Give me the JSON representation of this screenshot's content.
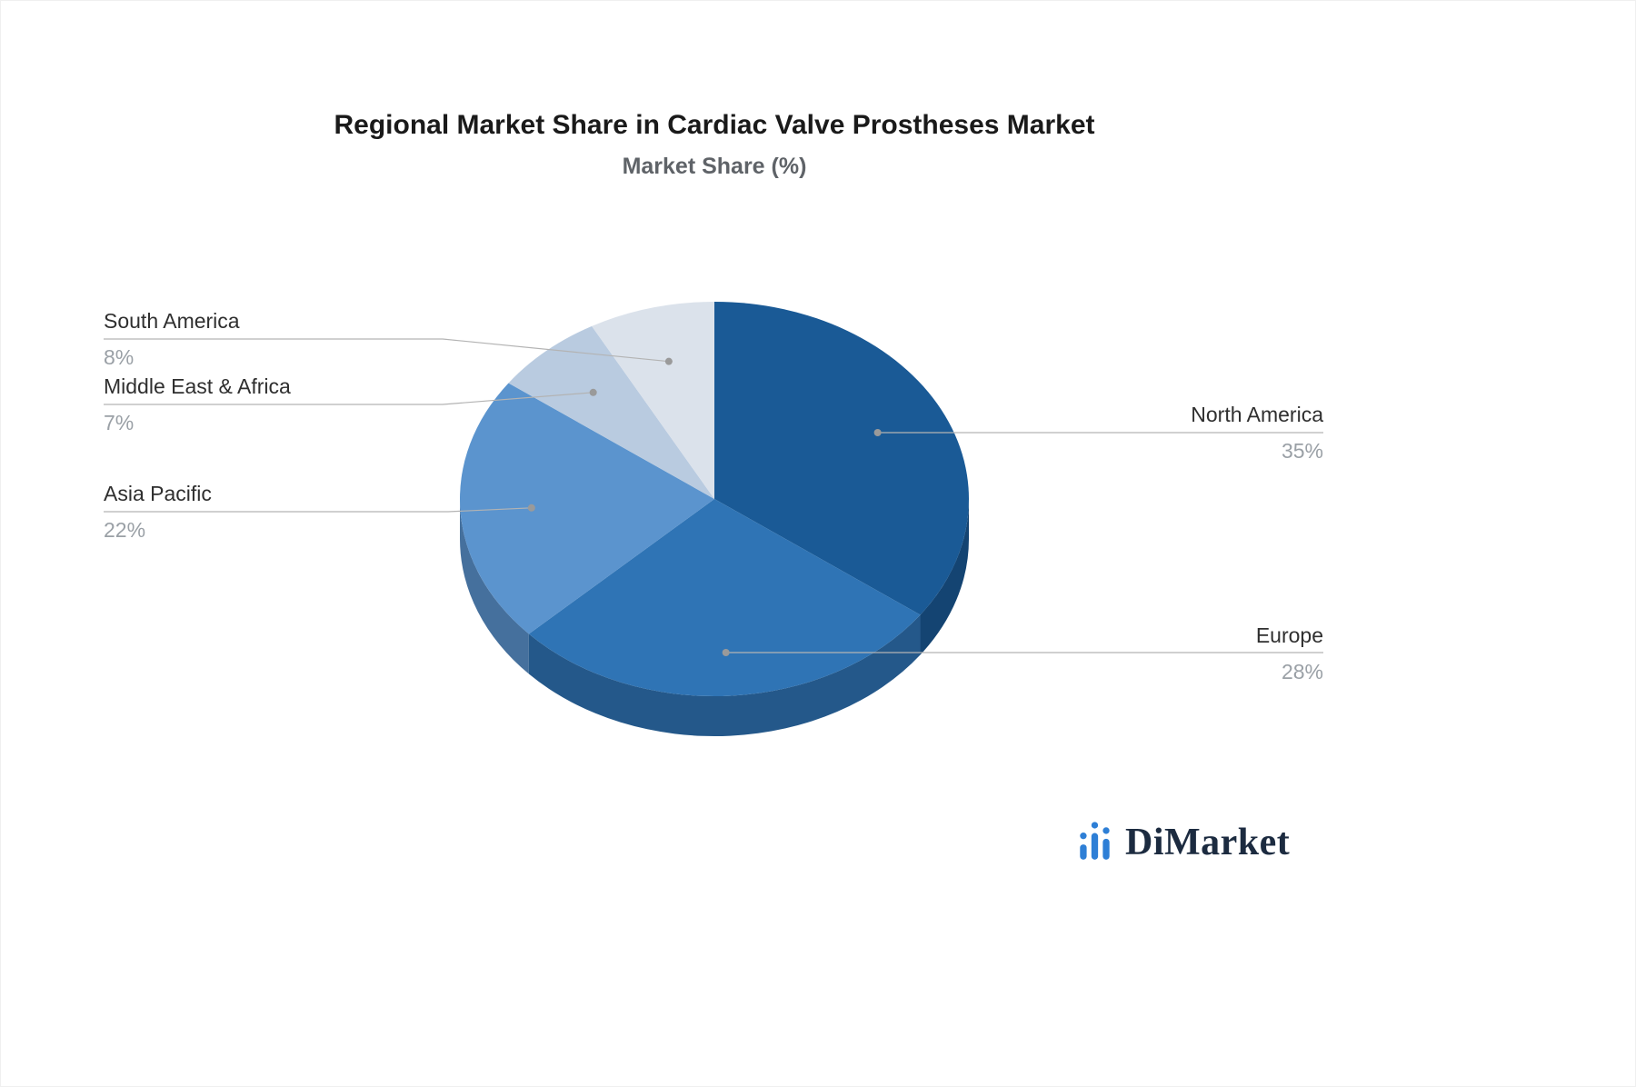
{
  "header": {
    "title": "Regional Market Share in Cardiac Valve Prostheses Market",
    "subtitle": "Market Share (%)"
  },
  "chart_data": {
    "type": "pie",
    "title": "Regional Market Share in Cardiac Valve Prostheses Market",
    "subtitle": "Market Share (%)",
    "unit": "%",
    "style": "3d-pie",
    "start_angle_deg": -90,
    "direction": "clockwise",
    "legend": "none",
    "label_style": "callout-lines-with-dots",
    "categories": [
      "North America",
      "Europe",
      "Asia Pacific",
      "Middle East & Africa",
      "South America"
    ],
    "values": [
      35,
      28,
      22,
      7,
      8
    ],
    "slices": [
      {
        "label": "North America",
        "value": 35,
        "display": "35%",
        "color": "#1a5a96"
      },
      {
        "label": "Europe",
        "value": 28,
        "display": "28%",
        "color": "#2f74b5"
      },
      {
        "label": "Asia Pacific",
        "value": 22,
        "display": "22%",
        "color": "#5b94ce"
      },
      {
        "label": "Middle East & Africa",
        "value": 7,
        "display": "7%",
        "color": "#b9cbe0"
      },
      {
        "label": "South America",
        "value": 8,
        "display": "8%",
        "color": "#dbe2eb"
      }
    ],
    "leader_line_color": "#b3b3b3",
    "dot_color": "#9a9a9a"
  },
  "branding": {
    "logo_text": "DiMarket",
    "logo_text_color": "#1c2b40",
    "logo_icon": "bar-chart-icon",
    "logo_icon_color": "#2e7fd6"
  }
}
